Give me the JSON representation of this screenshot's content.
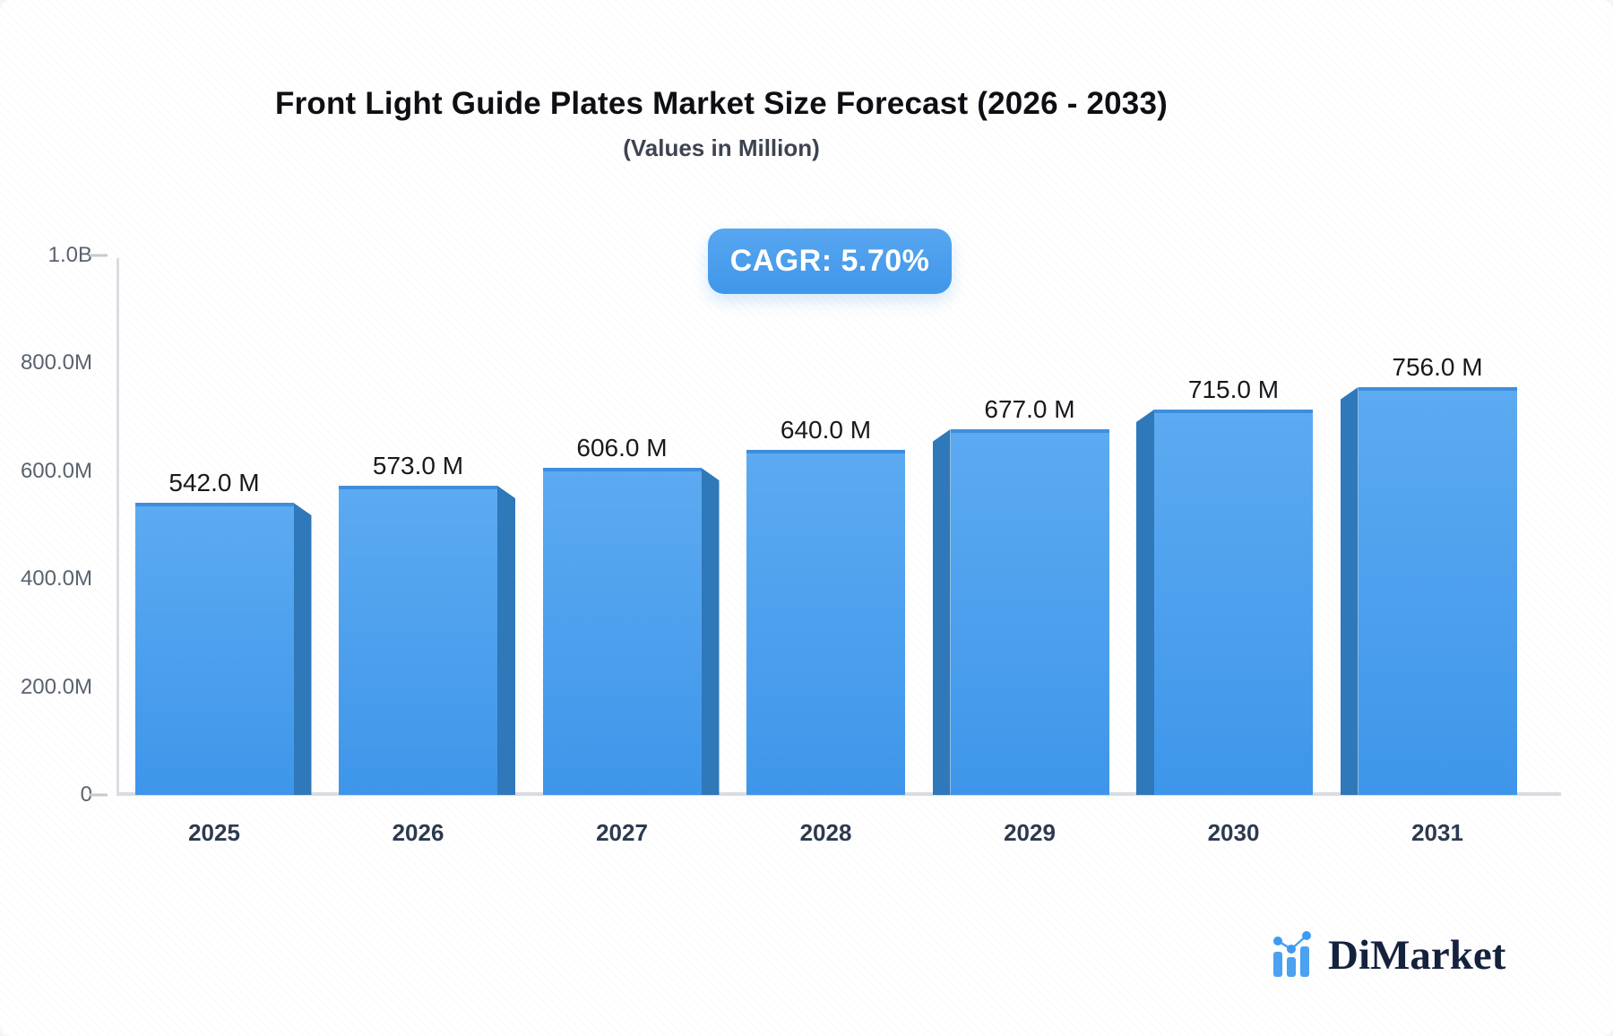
{
  "header": {
    "title": "Front Light Guide Plates Market Size Forecast (2026 - 2033)",
    "subtitle": "(Values in Million)",
    "cagr_label": "CAGR: 5.70%"
  },
  "chart_data": {
    "type": "bar",
    "title": "Front Light Guide Plates Market Size Forecast (2026 - 2033)",
    "subtitle": "(Values in Million)",
    "cagr_percent": 5.7,
    "categories": [
      "2025",
      "2026",
      "2027",
      "2028",
      "2029",
      "2030",
      "2031"
    ],
    "values": [
      542,
      573,
      606,
      640,
      677,
      715,
      756
    ],
    "value_labels": [
      "542.0 M",
      "573.0 M",
      "606.0 M",
      "640.0 M",
      "677.0 M",
      "715.0 M",
      "756.0 M"
    ],
    "ylabel": "",
    "xlabel": "",
    "ylim": [
      0,
      1000
    ],
    "y_ticks": [
      {
        "label": "1.0B",
        "value": 1000
      },
      {
        "label": "800.0M",
        "value": 800
      },
      {
        "label": "600.0M",
        "value": 600
      },
      {
        "label": "400.0M",
        "value": 400
      },
      {
        "label": "200.0M",
        "value": 200
      },
      {
        "label": "0",
        "value": 0
      }
    ],
    "grid": false,
    "legend": false,
    "bar_style": "3d-extruded"
  },
  "branding": {
    "logo_text": "DiMarket"
  },
  "colors": {
    "accent": "#4198ec",
    "badge_top": "#58a6f0",
    "badge_bottom": "#3f97ea",
    "bar_face_top": "#5caaf1",
    "bar_face_bottom": "#3e96ea",
    "bar_side": "#2f78ba",
    "bar_top_edge": "#3f8edd",
    "axis_line": "#d9dce2",
    "logo_blue": "#4ba1f2"
  }
}
